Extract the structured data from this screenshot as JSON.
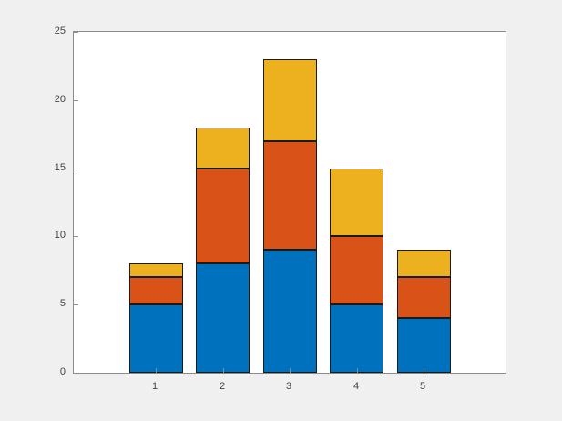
{
  "figure": {
    "background": "#f0f0f0",
    "plot_background": "#ffffff",
    "axis_color": "#8c8c8c",
    "tick_label_color": "#444444",
    "bar_edge_color": "#1a1a1a"
  },
  "chart_data": {
    "type": "bar",
    "stacked": true,
    "title": "",
    "xlabel": "",
    "ylabel": "",
    "grid": false,
    "legend": null,
    "categories": [
      "1",
      "2",
      "3",
      "4",
      "5"
    ],
    "x": [
      1,
      2,
      3,
      4,
      5
    ],
    "series": [
      {
        "name": "series-1-blue",
        "color": "#0072BD",
        "values": [
          5,
          8,
          9,
          5,
          4
        ]
      },
      {
        "name": "series-2-orange",
        "color": "#D95319",
        "values": [
          2,
          7,
          8,
          5,
          3
        ]
      },
      {
        "name": "series-3-yellow",
        "color": "#EDB120",
        "values": [
          1,
          3,
          6,
          5,
          2
        ]
      }
    ],
    "stack_totals": [
      8,
      18,
      23,
      15,
      9
    ],
    "ylim": [
      0,
      25
    ],
    "yticks": [
      0,
      5,
      10,
      15,
      20,
      25
    ],
    "xticks": [
      1,
      2,
      3,
      4,
      5
    ]
  }
}
